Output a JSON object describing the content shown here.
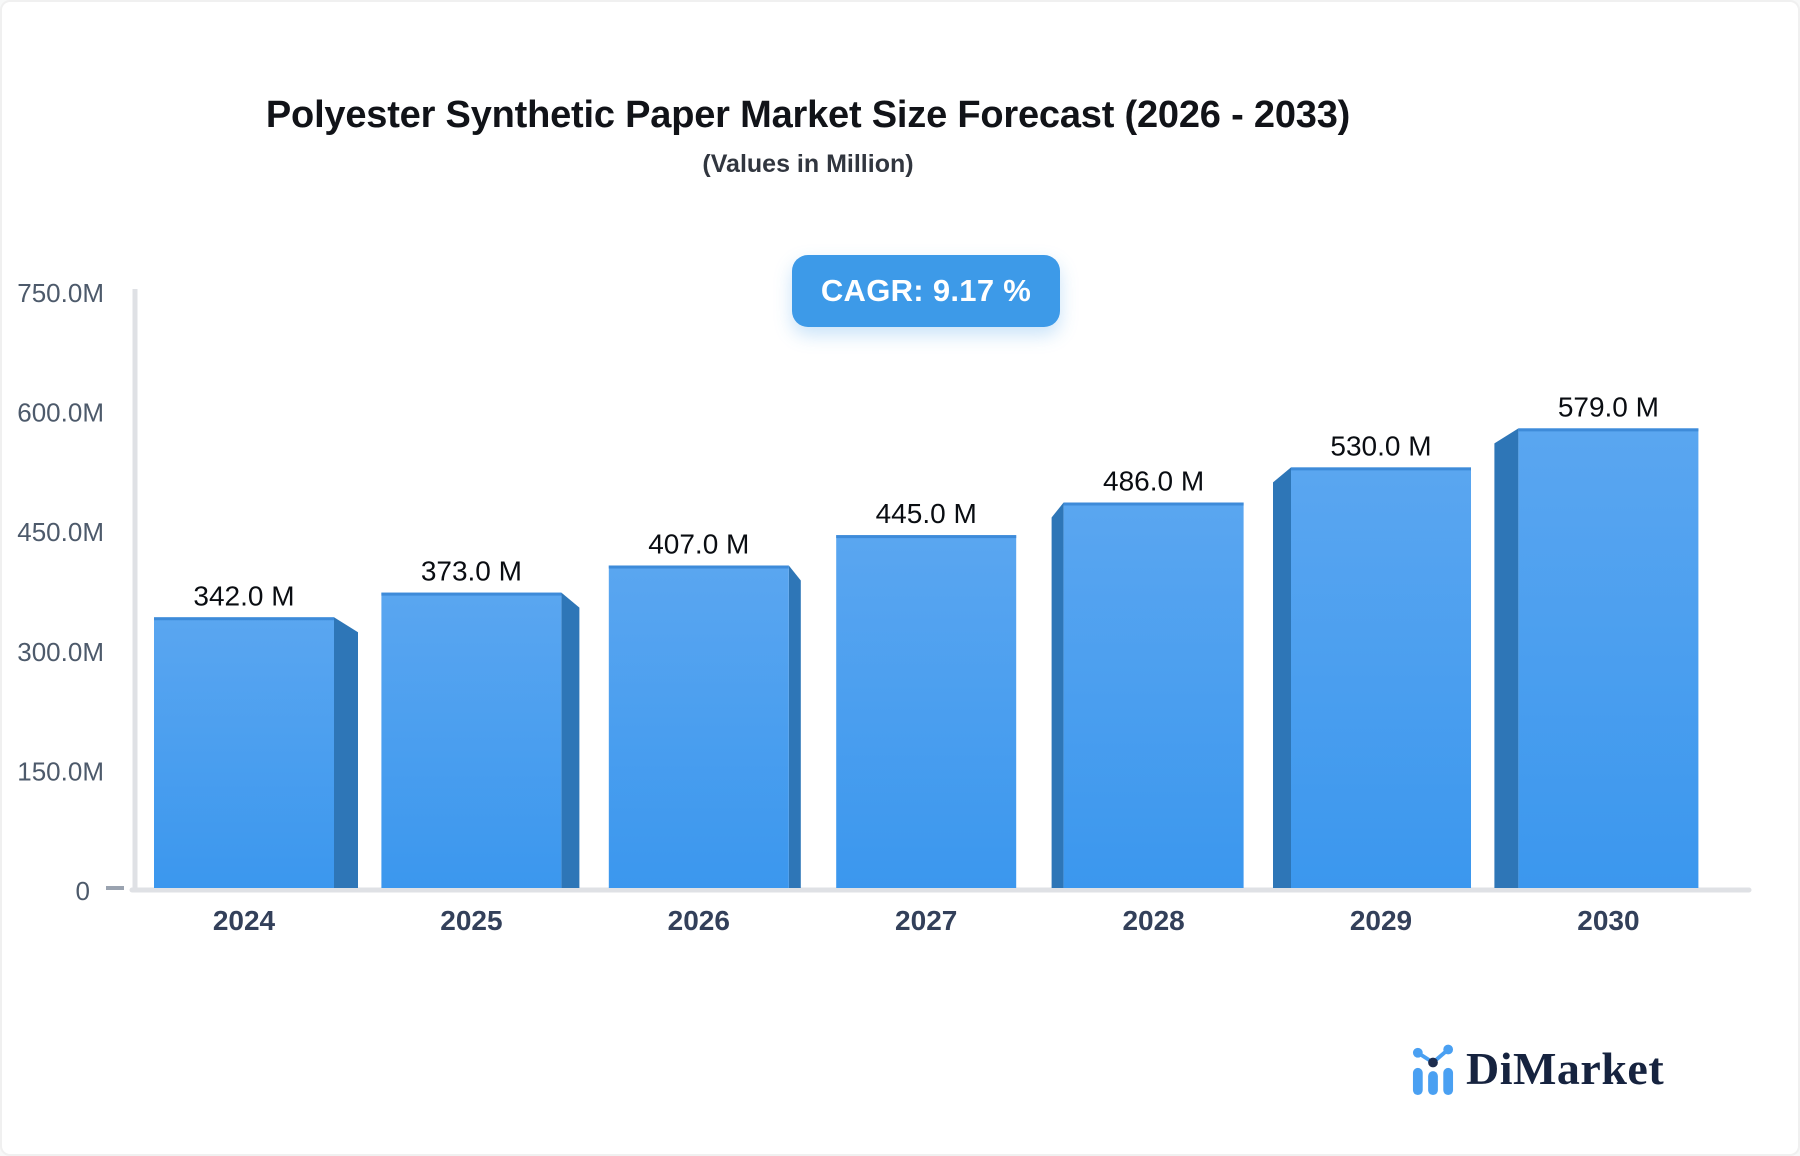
{
  "header": {
    "title": "Polyester Synthetic Paper Market Size Forecast (2026 - 2033)",
    "subtitle": "(Values in Million)"
  },
  "badge": {
    "label": "CAGR: 9.17 %",
    "color": "#3d9ae8"
  },
  "chart_data": {
    "type": "bar",
    "title": "Polyester Synthetic Paper Market Size Forecast (2026 - 2033)",
    "subtitle": "(Values in Million)",
    "categories": [
      "2024",
      "2025",
      "2026",
      "2027",
      "2028",
      "2029",
      "2030"
    ],
    "values": [
      342,
      373,
      407,
      445,
      486,
      530,
      579
    ],
    "value_labels": [
      "342.0 M",
      "373.0 M",
      "407.0 M",
      "445.0 M",
      "486.0 M",
      "530.0 M",
      "579.0 M"
    ],
    "unit": "Million",
    "xlabel": "",
    "ylabel": "",
    "ylim": [
      0,
      750
    ],
    "yticks": [
      0,
      150,
      300,
      450,
      600,
      750
    ],
    "ytick_labels": [
      "0",
      "150.0M",
      "300.0M",
      "450.0M",
      "600.0M",
      "750.0M"
    ],
    "grid": false,
    "legend": null,
    "style": "3d-perspective-bars",
    "colors": {
      "face_top": "#5aa6f0",
      "face_bottom": "#3b97ee",
      "side": "#2e76b7",
      "top_edge": "#3e8bd9",
      "axis_line": "#dfe1e5",
      "tick_label": "#4d5a6b",
      "category_label": "#33405a",
      "value_label": "#0a0d12"
    }
  },
  "logo": {
    "text": "DiMarket",
    "icon": "bar-chart-trend-icon",
    "text_color": "#16233f",
    "icon_color": "#4aa0f2",
    "icon_dot_color": "#1e2d4f"
  }
}
